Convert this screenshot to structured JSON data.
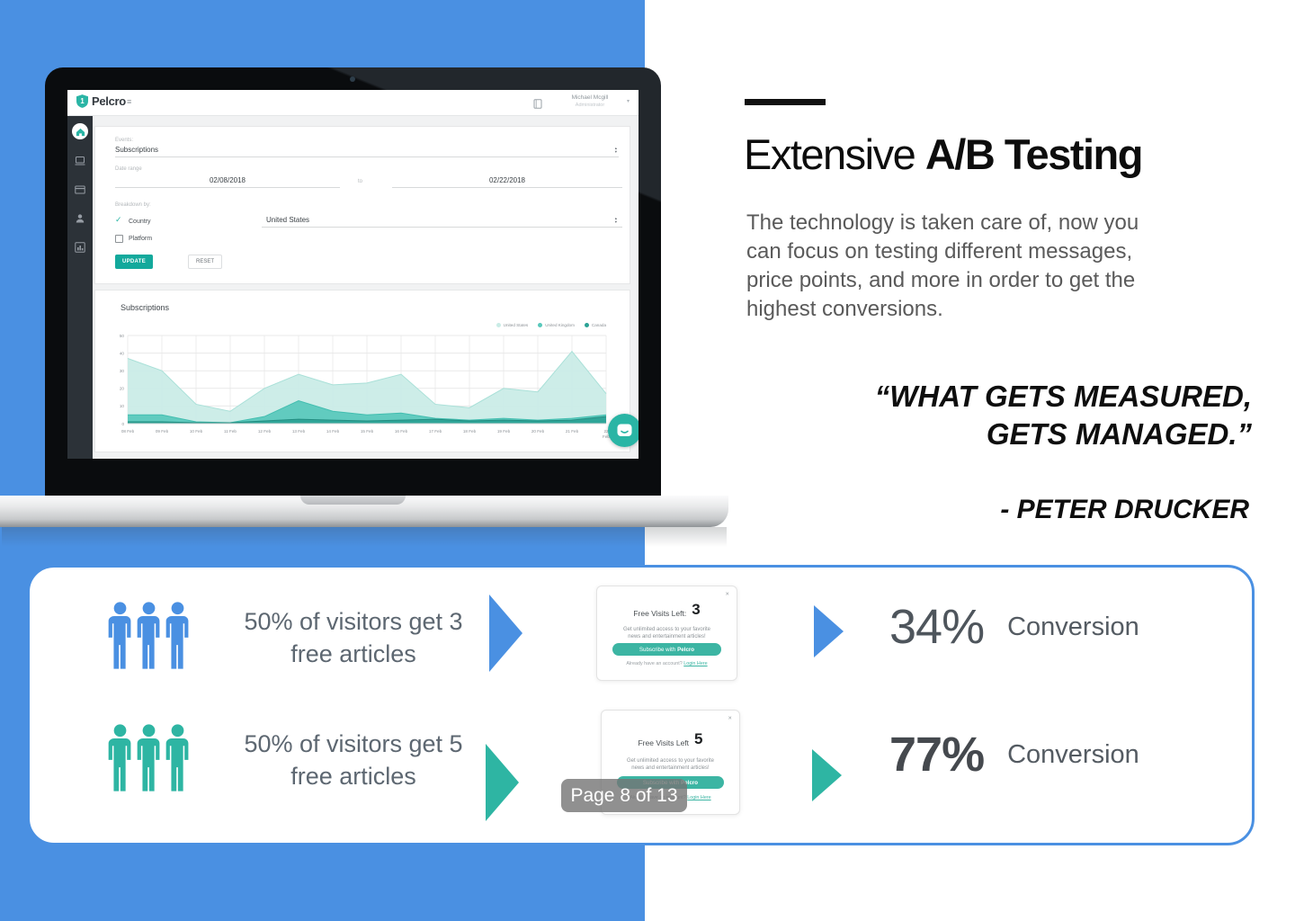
{
  "slide": {
    "colors": {
      "accent_blue": "#4a90e2",
      "accent_teal": "#2eb5a3"
    },
    "heading": {
      "regular": "Extensive ",
      "bold": "A/B Testing"
    },
    "paragraph_lines": [
      "The technology is taken care of, now you",
      "can focus on testing different messages,",
      "price points, and more in order to get the",
      "highest conversions."
    ],
    "quote": {
      "line1": "“WHAT GETS MEASURED,",
      "line2": "GETS MANAGED.”",
      "author": "- PETER DRUCKER"
    },
    "page_indicator": "Page 8 of 13"
  },
  "dashboard": {
    "logo_mark": "1",
    "logo_text": "Pelcro",
    "user_name": "Michael Mcgill",
    "user_role": "Administrator",
    "icons": {
      "menu": "≡",
      "chevron_down": "▾",
      "check": "✓",
      "select_up": "▴",
      "select_down": "▾"
    },
    "form": {
      "events_label": "Events:",
      "events_value": "Subscriptions",
      "date_range_label": "Date range",
      "date_from": "02/08/2018",
      "to_label": "to",
      "date_to": "02/22/2018",
      "breakdown_label": "Breakdown by:",
      "country_label": "Country",
      "country_value": "United States",
      "platform_label": "Platform",
      "update_button": "UPDATE",
      "reset_button": "RESET"
    },
    "chart_panel_title": "Subscriptions"
  },
  "chart_data": {
    "type": "area",
    "title": "Subscriptions",
    "x": [
      "08 Feb",
      "09 Feb",
      "10 Feb",
      "11 Feb",
      "12 Feb",
      "13 Feb",
      "14 Feb",
      "15 Feb",
      "16 Feb",
      "17 Feb",
      "18 Feb",
      "19 Feb",
      "20 Feb",
      "21 Feb",
      "22 Feb"
    ],
    "ylim": [
      0,
      50
    ],
    "yticks": [
      0,
      10,
      20,
      30,
      40,
      50
    ],
    "grid": true,
    "legend_position": "top-right",
    "series": [
      {
        "name": "United States",
        "fill": "#c9ece6",
        "stroke": "#a9e0d8",
        "values": [
          37,
          30,
          11,
          7,
          20,
          28,
          22,
          23,
          28,
          11,
          9,
          20,
          18,
          41,
          17
        ]
      },
      {
        "name": "United Kingdom",
        "fill": "#58c8bb",
        "stroke": "#43beb0",
        "values": [
          5,
          5,
          1,
          0.5,
          4,
          13,
          7,
          5,
          6,
          3,
          2,
          3,
          2,
          3,
          5
        ]
      },
      {
        "name": "Canada",
        "fill": "#2ba295",
        "stroke": "#238d81",
        "values": [
          1,
          1,
          0.5,
          0.5,
          1.5,
          2.5,
          2,
          1.5,
          2,
          2.5,
          1.5,
          2,
          1.5,
          2,
          4
        ]
      }
    ]
  },
  "ab_test": {
    "rows": [
      {
        "audience_line1": "50% of visitors get 3",
        "audience_line2": "free articles",
        "paywall": {
          "close": "✕",
          "title": "Free Visits Left:",
          "count": "3",
          "body_line1": "Get unlimited access to your favorite",
          "body_line2": "news and entertainment articles!",
          "button_prefix": "Subscribe with",
          "button_brand": "Pelcro",
          "footer_question": "Already have an account?",
          "footer_link": "Login Here"
        },
        "conversion_value": "34%",
        "conversion_label": "Conversion"
      },
      {
        "audience_line1": "50% of visitors get 5",
        "audience_line2": "free articles",
        "paywall": {
          "close": "✕",
          "title": "Free Visits Left",
          "count": "5",
          "body_line1": "Get unlimited access to your favorite",
          "body_line2": "news and entertainment articles!",
          "button_prefix": "Subscribe with",
          "button_brand": "Pelcro",
          "footer_question": "Already have an account?",
          "footer_link": "Login Here"
        },
        "conversion_value": "77%",
        "conversion_label": "Conversion"
      }
    ]
  }
}
